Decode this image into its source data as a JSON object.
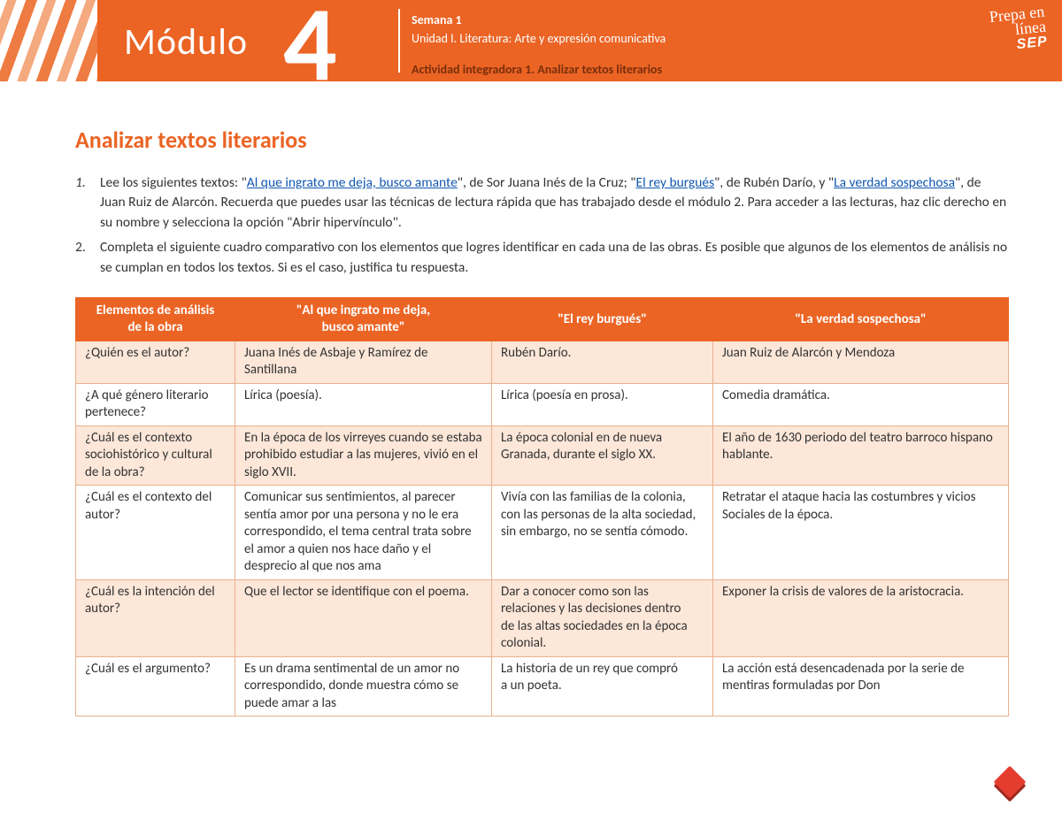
{
  "colors": {
    "brand": "#eb6424",
    "brand_dark": "#7a2e0b",
    "link": "#1258b0",
    "row_odd": "#fce7d9",
    "row_even": "#ffffff",
    "table_border": "#e9b18e",
    "text": "#333333",
    "accent_red": "#e43d2f"
  },
  "header": {
    "module_label": "Módulo",
    "module_number": "4",
    "week": "Semana 1",
    "unit": "Unidad I. Literatura: Arte y expresión comunicativa",
    "activity": "Actividad integradora 1. Analizar textos literarios",
    "logo_line1": "Prepa en",
    "logo_line2": "línea",
    "logo_line3": "SEP"
  },
  "title": "Analizar textos literarios",
  "instructions": {
    "item1": {
      "num": "1.",
      "t1": "Lee los siguientes textos: \"",
      "link1": "Al que ingrato me deja, busco amante",
      "t2": "\", de Sor Juana Inés de la Cruz; \"",
      "link2": "El rey burgués",
      "t3": "\", de Rubén Darío, y \"",
      "link3": "La verdad sospechosa",
      "t4": "\", de Juan Ruiz de Alarcón. Recuerda que puedes usar las técnicas de lectura rápida que has trabajado desde el módulo 2. Para acceder a las lecturas, haz clic derecho en su nombre y selecciona la opción \"Abrir hipervínculo\"."
    },
    "item2": {
      "num": "2.",
      "text": "Completa el siguiente cuadro comparativo con los elementos que logres identificar en cada una de las obras. Es posible que algunos de los elementos de análisis no se cumplan en todos los textos. Si es el caso, justifica tu respuesta."
    }
  },
  "table": {
    "headers": {
      "h1a": "Elementos de análisis",
      "h1b": "de la obra",
      "h2a": "\"Al que ingrato me deja,",
      "h2b": "busco amante\"",
      "h3": "\"El rey burgués\"",
      "h4": "\"La verdad sospechosa\""
    },
    "rows": [
      {
        "q": "¿Quién es el autor?",
        "c1": "Juana Inés de Asbaje y Ramírez de Santillana",
        "c2": "Rubén Darío.",
        "c3": "Juan Ruiz de Alarcón y Mendoza"
      },
      {
        "q": "¿A qué género literario pertenece?",
        "c1": "Lírica (poesía).",
        "c2": "Lírica (poesía en prosa).",
        "c3": "Comedia dramática."
      },
      {
        "q": "¿Cuál es el contexto sociohistórico y cultural de la obra?",
        "c1": "En la época de los virreyes cuando se estaba prohibido estudiar a las mujeres, vivió en el siglo XVII.",
        "c2": "La época colonial en de nueva Granada, durante el siglo XX.",
        "c3": "El año de 1630 periodo del teatro barroco hispano hablante."
      },
      {
        "q": "¿Cuál es el contexto del autor?",
        "c1": "Comunicar sus sentimientos, al parecer sentía amor por una persona y no le era correspondido, el tema central trata sobre el amor a quien nos hace daño y el desprecio al que nos ama",
        "c2": "Vivía con las familias de la colonia, con las personas de la alta sociedad, sin embargo, no se sentía cómodo.",
        "c3": "Retratar el ataque hacia las costumbres y vicios Sociales de la época."
      },
      {
        "q": "¿Cuál es la intención del autor?",
        "c1": "Que el lector se identifique con el poema.",
        "c2": "Dar a conocer como son las relaciones y las decisiones dentro\nde las altas sociedades en la época colonial.",
        "c3": "Exponer la crisis de valores de la aristocracia."
      },
      {
        "q": "¿Cuál es el argumento?",
        "c1": "Es un drama sentimental de un amor no correspondido, donde muestra cómo se puede amar a las",
        "c2": "La historia de un rey que compró\na un poeta.",
        "c3": "La acción está desencadenada por la serie de\nmentiras formuladas por Don"
      }
    ]
  }
}
